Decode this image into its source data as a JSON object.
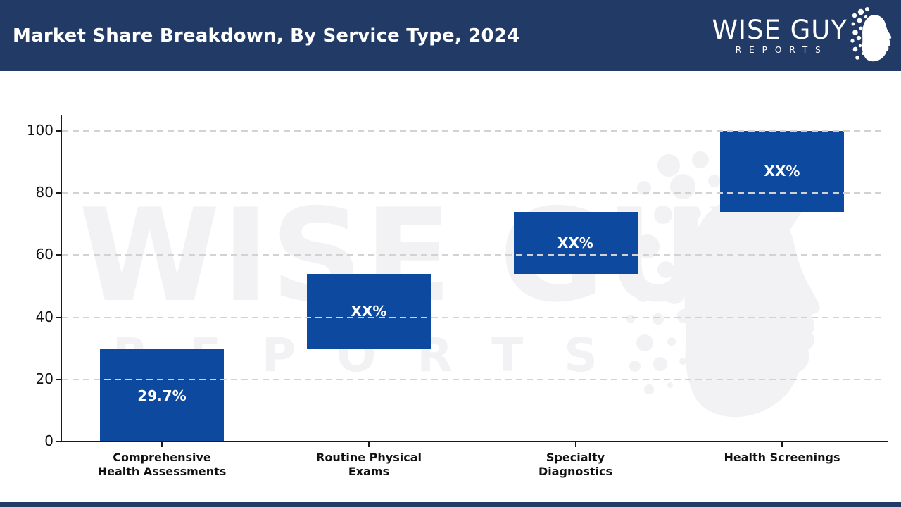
{
  "header": {
    "title": "Market Share Breakdown, By Service Type, 2024",
    "logo": {
      "line1": "WISE GUY",
      "line2": "REPORTS"
    }
  },
  "watermark": {
    "line1": "WISE GUY",
    "line2": "REPORTS"
  },
  "colors": {
    "header_bg": "#213a66",
    "bar": "#0d4a9f",
    "bar_label_text": "#ffffff",
    "axis": "#1a1a1a",
    "grid": "#d2d2d2",
    "watermark": "#f2f2f4",
    "title_text": "#ffffff"
  },
  "chart_data": {
    "type": "bar",
    "subtype": "waterfall",
    "title": "Market Share Breakdown, By Service Type, 2024",
    "categories": [
      "Comprehensive Health Assessments",
      "Routine Physical Exams",
      "Specialty Diagnostics",
      "Health Screenings"
    ],
    "categories_lines": [
      [
        "Comprehensive",
        "Health Assessments"
      ],
      [
        "Routine Physical",
        "Exams"
      ],
      [
        "Specialty",
        "Diagnostics"
      ],
      [
        "Health Screenings"
      ]
    ],
    "segments": [
      {
        "category": "Comprehensive Health Assessments",
        "start": 0,
        "end": 29.7,
        "label": "29.7%"
      },
      {
        "category": "Routine Physical Exams",
        "start": 29.7,
        "end": 54,
        "label": "XX%"
      },
      {
        "category": "Specialty Diagnostics",
        "start": 54,
        "end": 74,
        "label": "XX%"
      },
      {
        "category": "Health Screenings",
        "start": 74,
        "end": 100,
        "label": "XX%"
      }
    ],
    "xlabel": "",
    "ylabel": "",
    "ylim": [
      0,
      100
    ],
    "yticks": [
      0,
      20,
      40,
      60,
      80,
      100
    ],
    "grid": "horizontal-dashed",
    "legend": "none"
  }
}
